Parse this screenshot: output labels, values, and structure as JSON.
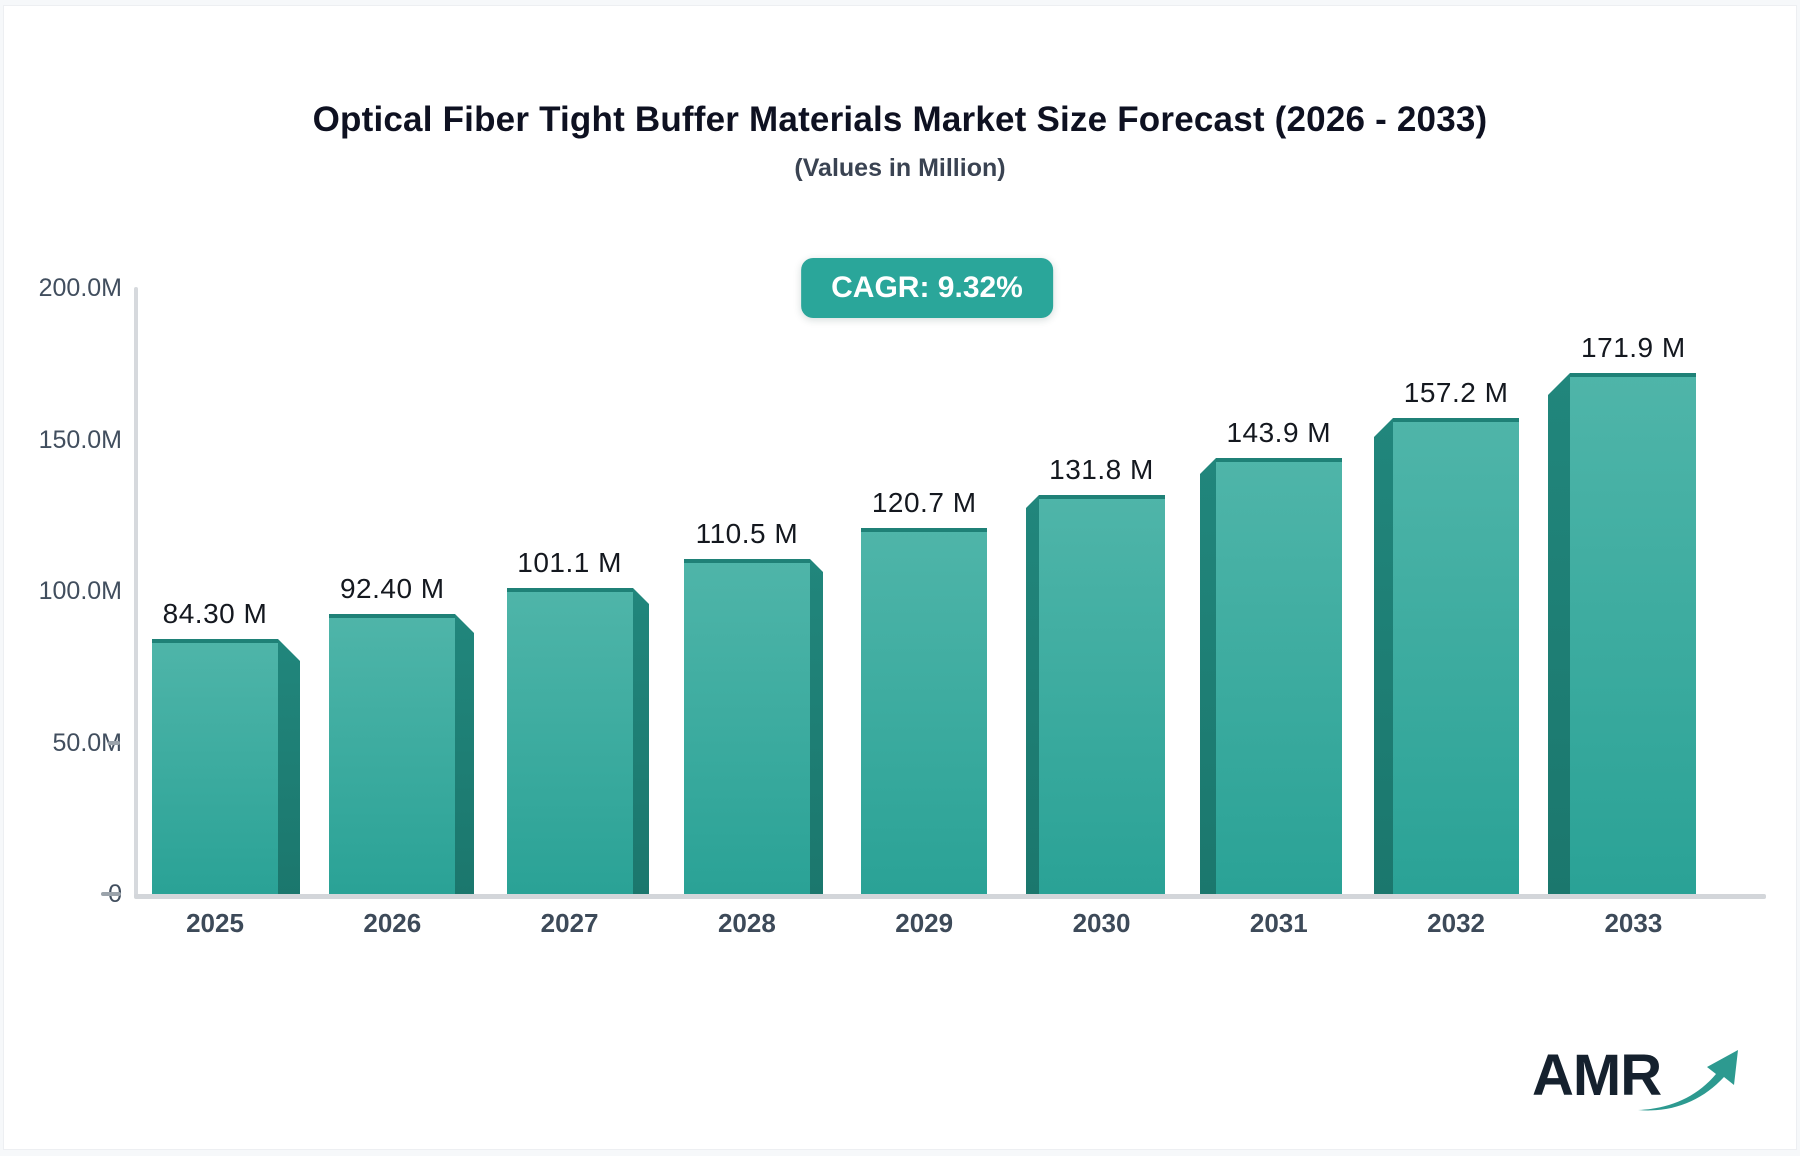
{
  "header": {
    "title": "Optical Fiber Tight Buffer Materials Market Size Forecast (2026 - 2033)",
    "subtitle": "(Values in Million)",
    "cagr_label": "CAGR: 9.32%"
  },
  "chart_data": {
    "type": "bar",
    "title": "Optical Fiber Tight Buffer Materials Market Size Forecast (2026 - 2033)",
    "subtitle": "(Values in Million)",
    "categories": [
      "2025",
      "2026",
      "2027",
      "2028",
      "2029",
      "2030",
      "2031",
      "2032",
      "2033"
    ],
    "values": [
      84.3,
      92.4,
      101.1,
      110.5,
      120.7,
      131.8,
      143.9,
      157.2,
      171.9
    ],
    "value_labels": [
      "84.30 M",
      "92.40 M",
      "101.1 M",
      "110.5 M",
      "120.7 M",
      "131.8 M",
      "143.9 M",
      "157.2 M",
      "171.9 M"
    ],
    "unit": "Million",
    "ylim": [
      0,
      200
    ],
    "y_tick_values": [
      200,
      150,
      100,
      50,
      0
    ],
    "y_tick_labels": [
      "200.0M",
      "150.0M",
      "100.0M",
      "50.0M",
      "0"
    ],
    "grid": false,
    "legend": "none",
    "style": "3d-perspective-columns",
    "cagr_text": "CAGR: 9.32%"
  },
  "colors": {
    "bar_face_top": "#4fb5a9",
    "bar_face_bottom": "#2aa296",
    "bar_side": "#1e7e73",
    "bar_top_edge": "#1f8177",
    "badge_bg": "#2aa69a",
    "badge_text": "#ffffff",
    "axis_line": "#d5d8dc",
    "axis_text": "#3d4a59",
    "value_text": "#14181f",
    "title_text": "#0e1121",
    "logo_text": "#15212e",
    "logo_arrow": "#2d9a90"
  },
  "branding": {
    "logo_text": "AMR"
  }
}
